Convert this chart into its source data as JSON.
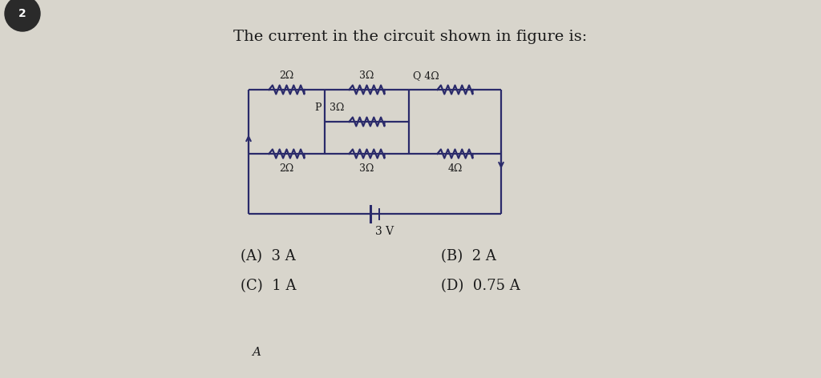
{
  "title": "The current in the circuit shown in figure is:",
  "title_fontsize": 14,
  "background_color": "#d8d5cc",
  "text_color": "#1a1a1a",
  "circuit_color": "#2a2a6a",
  "options": [
    [
      "(A)  3 A",
      "(B)  2 A"
    ],
    [
      "(C)  1 A",
      "(D)  0.75 A"
    ]
  ],
  "option_fontsize": 13,
  "badge_number": "2",
  "answer_letter": "A",
  "label_2ohm_top": "2Ω",
  "label_3ohm_top": "3Ω",
  "label_3ohm_mid": "3Ω",
  "label_P": "P",
  "label_Q4ohm": "Q 4Ω",
  "label_2ohm_bot": "2Ω",
  "label_3ohm_bot": "3Ω",
  "label_4ohm_bot": "4Ω",
  "battery_label": "3 V"
}
